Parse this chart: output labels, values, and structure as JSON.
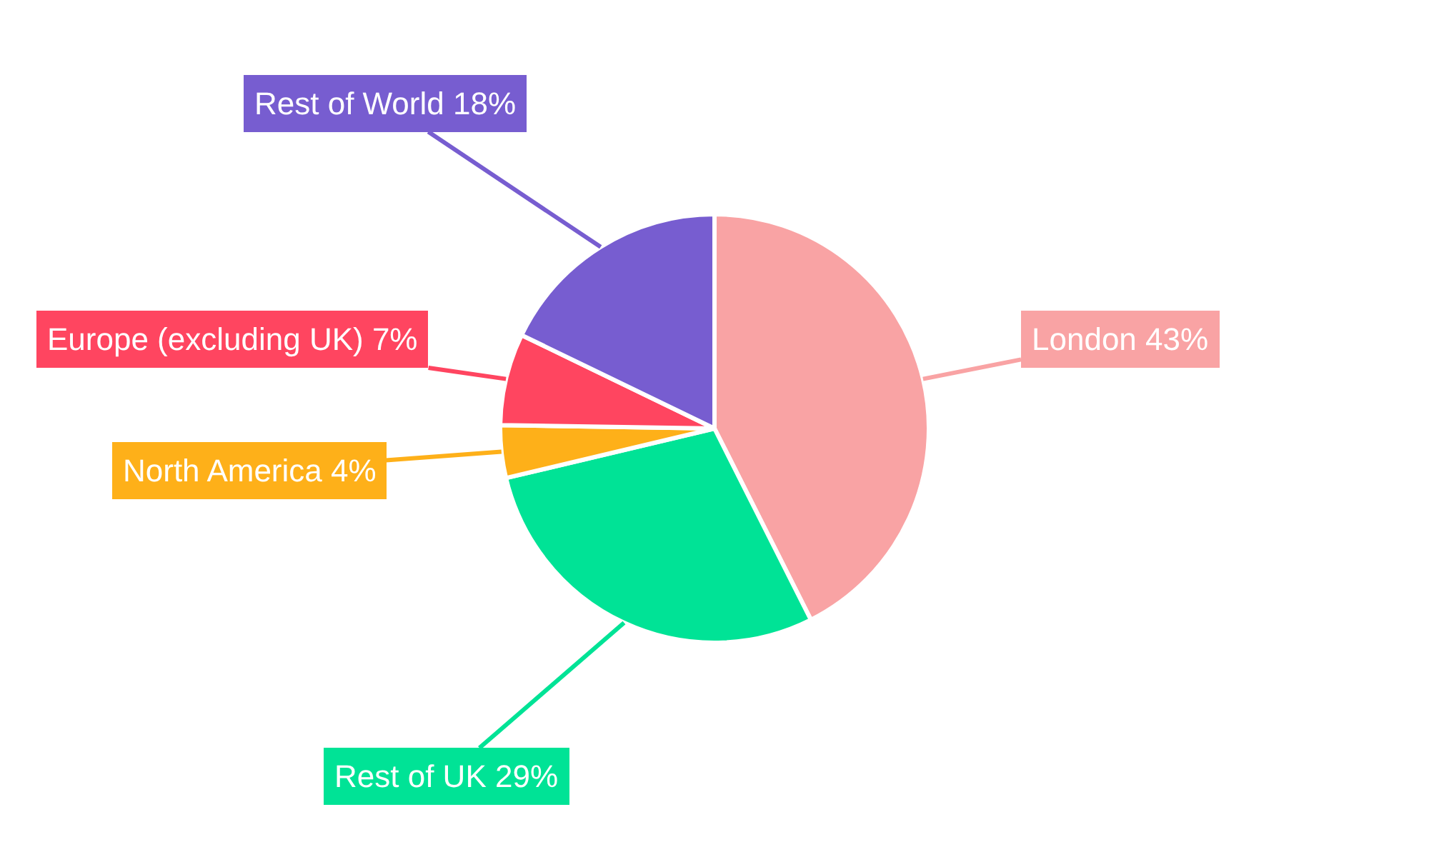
{
  "chart_data": {
    "type": "pie",
    "categories": [
      "London",
      "Rest of UK",
      "North America",
      "Europe (excluding UK)",
      "Rest of World"
    ],
    "values": [
      43,
      29,
      4,
      7,
      18
    ],
    "value_labels": [
      "43%",
      "29%",
      "4%",
      "7%",
      "18%"
    ],
    "colors": [
      "#f9a3a4",
      "#00e396",
      "#feb019",
      "#ff4560",
      "#775dd0"
    ],
    "legend": false
  }
}
